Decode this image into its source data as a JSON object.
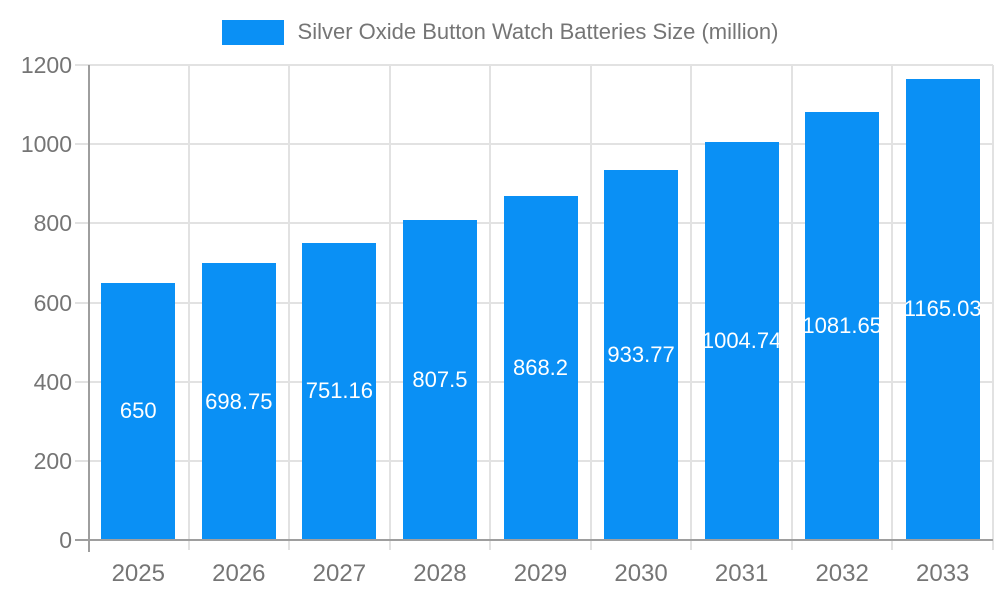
{
  "chart_data": {
    "type": "bar",
    "title": "Silver Oxide Button Watch Batteries Size (million)",
    "legend": {
      "position": "top",
      "entries": [
        "Silver Oxide Button Watch Batteries Size (million)"
      ]
    },
    "categories": [
      "2025",
      "2026",
      "2027",
      "2028",
      "2029",
      "2030",
      "2031",
      "2032",
      "2033"
    ],
    "series": [
      {
        "name": "Silver Oxide Button Watch Batteries Size (million)",
        "values": [
          650,
          698.75,
          751.16,
          807.5,
          868.2,
          933.77,
          1004.74,
          1081.65,
          1165.03
        ],
        "value_labels": [
          "650",
          "698.75",
          "751.16",
          "807.5",
          "868.2",
          "933.77",
          "1004.74",
          "1081.65",
          "1165.03"
        ]
      }
    ],
    "xlabel": "",
    "ylabel": "",
    "ylim": [
      0,
      1200
    ],
    "yticks": [
      0,
      200,
      400,
      600,
      800,
      1000,
      1200
    ],
    "grid": true,
    "colors": {
      "bar": "#0a90f5",
      "grid": "#e2e2e2",
      "axis": "#9e9e9e",
      "text": "#757575",
      "value_label": "#ffffff",
      "background": "#ffffff"
    }
  }
}
